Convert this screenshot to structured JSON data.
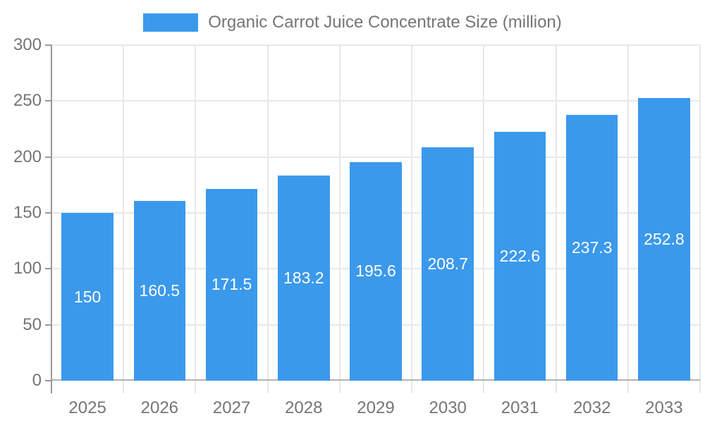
{
  "chart_data": {
    "type": "bar",
    "title": "Organic Carrot Juice Concentrate Size (million)",
    "categories": [
      "2025",
      "2026",
      "2027",
      "2028",
      "2029",
      "2030",
      "2031",
      "2032",
      "2033"
    ],
    "values": [
      150,
      160.5,
      171.5,
      183.2,
      195.6,
      208.7,
      222.6,
      237.3,
      252.8
    ],
    "ylim": [
      0,
      300
    ],
    "ytick_step": 50,
    "ytick_labels": [
      "0",
      "50",
      "100",
      "150",
      "200",
      "250",
      "300"
    ],
    "grid": true,
    "legend_position": "top",
    "colors": {
      "bar": "#3b99ec",
      "axis": "#999999",
      "baseline": "#b3b3b3",
      "gridline": "#e8e8e8",
      "tick_label": "#757575",
      "bar_value_text": "#ffffff",
      "background": "#ffffff"
    }
  }
}
